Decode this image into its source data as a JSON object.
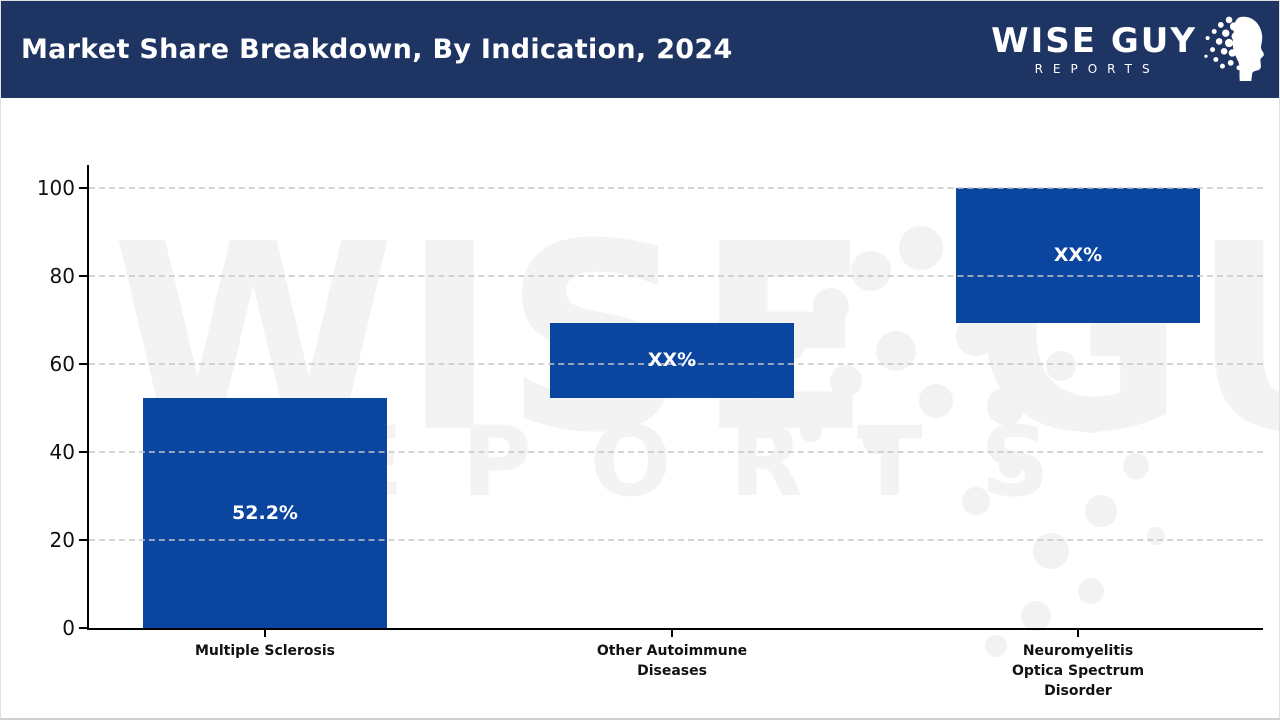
{
  "header": {
    "title": "Market Share Breakdown, By Indication, 2024",
    "logo": {
      "line1": "WISE GUY",
      "line2": "REPORTS"
    }
  },
  "watermark": {
    "line1": "WISE GUY",
    "line2": "REPORTS"
  },
  "chart_data": {
    "type": "bar",
    "variant": "waterfall",
    "title": "Market Share Breakdown, By Indication, 2024",
    "categories": [
      "Multiple Sclerosis",
      "Other Autoimmune Diseases",
      "Neuromyelitis Optica Spectrum Disorder"
    ],
    "bars": [
      {
        "category": "Multiple Sclerosis",
        "lines": [
          "Multiple Sclerosis"
        ],
        "start": 0,
        "end": 52.2,
        "value_label": "52.2%"
      },
      {
        "category": "Other Autoimmune Diseases",
        "lines": [
          "Other Autoimmune",
          "Diseases"
        ],
        "start": 52.2,
        "end": 69.4,
        "value_label": "XX%"
      },
      {
        "category": "Neuromyelitis Optica Spectrum Disorder",
        "lines": [
          "Neuromyelitis",
          "Optica Spectrum",
          "Disorder"
        ],
        "start": 69.4,
        "end": 100,
        "value_label": "XX%"
      }
    ],
    "xlabel": "",
    "ylabel": "",
    "ylim": [
      0,
      100
    ],
    "yticks": [
      0,
      20,
      40,
      60,
      80,
      100
    ],
    "grid": {
      "horizontal": true,
      "style": "dashed",
      "over_bars": true
    },
    "legend": null,
    "colors": {
      "bar": "#0a46a0",
      "value_label": "#ffffff",
      "axis": "#000000",
      "gridline": "#c6c6c6",
      "header": "#1e3463",
      "watermark": "#f3f3f3"
    }
  }
}
